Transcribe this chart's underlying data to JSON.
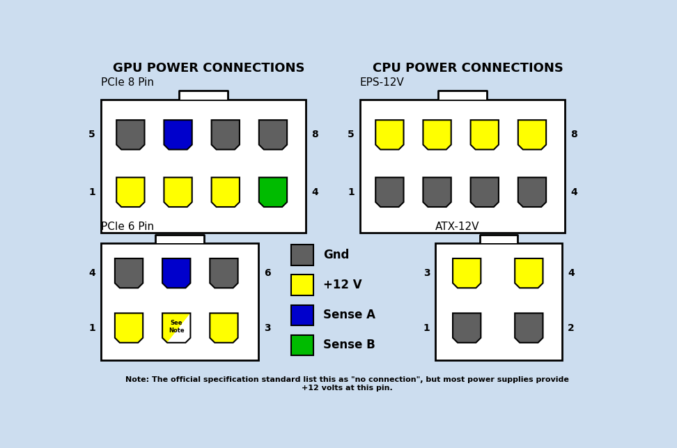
{
  "bg_color": "#ccddef",
  "title_gpu": "GPU POWER CONNECTIONS",
  "title_cpu": "CPU POWER CONNECTIONS",
  "subtitle_pcie8": "PCIe 8 Pin",
  "subtitle_pcie6": "PCIe 6 Pin",
  "subtitle_eps": "EPS-12V",
  "subtitle_atx": "ATX-12V",
  "colors": {
    "gray": "#606060",
    "yellow": "#ffff00",
    "blue": "#0000cc",
    "green": "#00bb00",
    "white": "#ffffff",
    "black": "#000000",
    "box_bg": "#ffffff"
  },
  "legend": [
    {
      "color": "#606060",
      "label": "Gnd"
    },
    {
      "color": "#ffff00",
      "label": "+12 V"
    },
    {
      "color": "#0000cc",
      "label": "Sense A"
    },
    {
      "color": "#00bb00",
      "label": "Sense B"
    }
  ],
  "note": "Note: The official specification standard list this as \"no connection\", but most power supplies provide\n+12 volts at this pin."
}
